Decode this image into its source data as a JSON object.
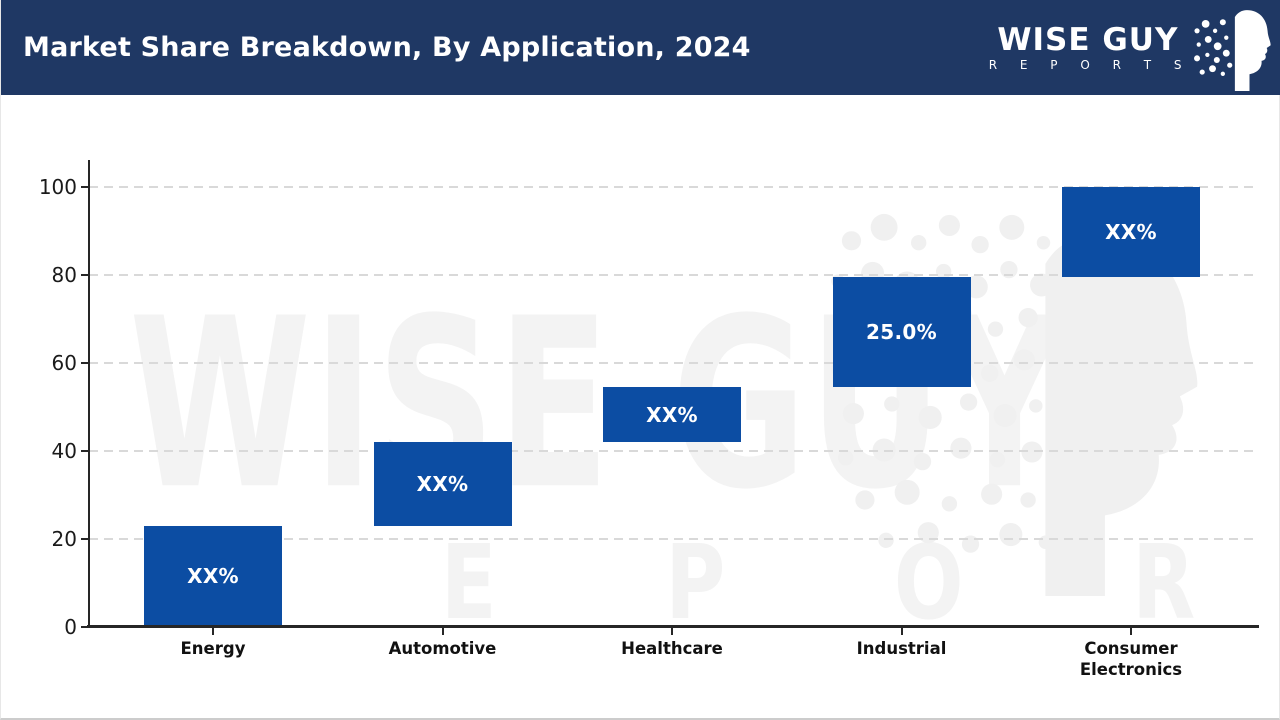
{
  "header": {
    "title": "Market Share Breakdown, By Application, 2024",
    "logo": {
      "primary": "WISE GUY",
      "secondary": "R E P O R T S"
    }
  },
  "watermark": {
    "line1": "WISE GUY",
    "line2": "R E P O R T S"
  },
  "chart_data": {
    "type": "bar",
    "subtype": "waterfall",
    "title": "Market Share Breakdown, By Application, 2024",
    "xlabel": "",
    "ylabel": "",
    "categories": [
      "Energy",
      "Automotive",
      "Healthcare",
      "Industrial",
      "Consumer Electronics"
    ],
    "series": [
      {
        "name": "Market share (%)",
        "segments": [
          {
            "category": "Energy",
            "start": 0,
            "end": 23,
            "value_label": "XX%"
          },
          {
            "category": "Automotive",
            "start": 23,
            "end": 42,
            "value_label": "XX%"
          },
          {
            "category": "Healthcare",
            "start": 42,
            "end": 54.5,
            "value_label": "XX%"
          },
          {
            "category": "Industrial",
            "start": 54.5,
            "end": 79.5,
            "value_label": "25.0%"
          },
          {
            "category": "Consumer Electronics",
            "start": 79.5,
            "end": 100,
            "value_label": "XX%"
          }
        ]
      }
    ],
    "ylim": [
      0,
      105
    ],
    "yticks": [
      0,
      20,
      40,
      60,
      80,
      100
    ],
    "grid": "horizontal-dashed",
    "legend": "none",
    "colors": {
      "bar": "#0c4da3",
      "header_bg": "#1f3864",
      "grid": "#d9d9d9",
      "axis": "#262626",
      "bar_label": "#ffffff",
      "watermark": "#f3f3f3"
    }
  }
}
